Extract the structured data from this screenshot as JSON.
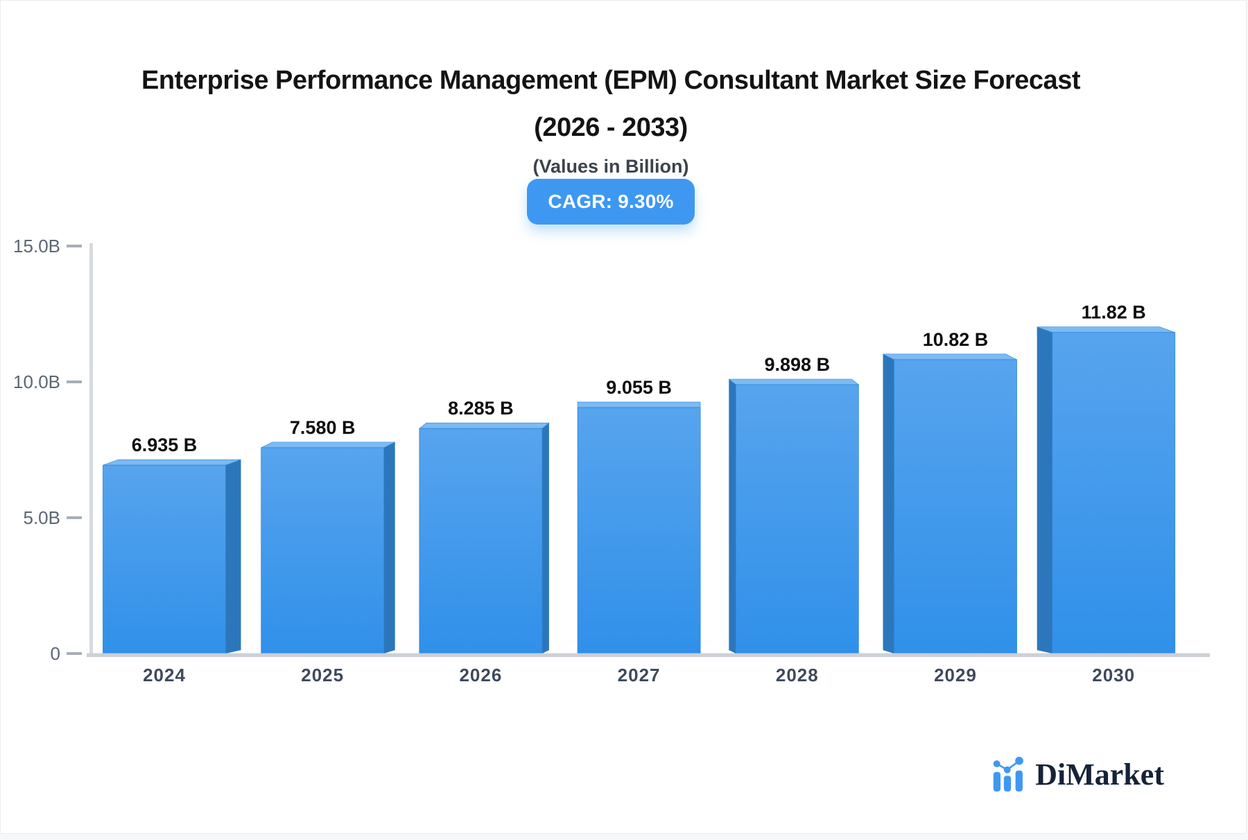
{
  "header": {
    "title_line1": "Enterprise Performance Management (EPM) Consultant Market Size Forecast",
    "title_line2": "(2026 - 2033)",
    "subtitle": "(Values in Billion)",
    "cagr_badge": "CAGR: 9.30%"
  },
  "chart_data": {
    "type": "bar",
    "style": "3d-perspective-bars",
    "title": "Enterprise Performance Management (EPM) Consultant Market Size Forecast (2026 - 2033)",
    "subtitle": "(Values in Billion)",
    "cagr_label": "CAGR: 9.30%",
    "categories": [
      "2024",
      "2025",
      "2026",
      "2027",
      "2028",
      "2029",
      "2030"
    ],
    "values": [
      6.935,
      7.58,
      8.285,
      9.055,
      9.898,
      10.82,
      11.82
    ],
    "value_labels": [
      "6.935 B",
      "7.580 B",
      "8.285 B",
      "9.055 B",
      "9.898 B",
      "10.82 B",
      "11.82 B"
    ],
    "y_axis": {
      "range": [
        0,
        15
      ],
      "ticks": [
        {
          "value": 0,
          "label": "0"
        },
        {
          "value": 5,
          "label": "5.0B"
        },
        {
          "value": 10,
          "label": "10.0B"
        },
        {
          "value": 15,
          "label": "15.0B"
        }
      ]
    },
    "xlabel": "",
    "ylabel": "",
    "grid": false,
    "legend": false,
    "colors": {
      "bar_front_light": "#57A4EE",
      "bar_front": "#3090E9",
      "bar_outline": "#2F85D7",
      "bar_side": "#2C77BB",
      "bar_top": "#7CBAF3",
      "axis_line": "#CCD0D7",
      "axis_vline": "#D6D9DE",
      "tick_dash": "#A7AEB8",
      "tick_label": "#5B6673",
      "category_label": "#3E4A5B",
      "value_label": "#0C0D0E"
    }
  },
  "footer": {
    "brand": "DiMarket",
    "brand_icon": "bar-chart-logo-icon",
    "brand_color": "#152238",
    "icon_color": "#3E98F2"
  }
}
